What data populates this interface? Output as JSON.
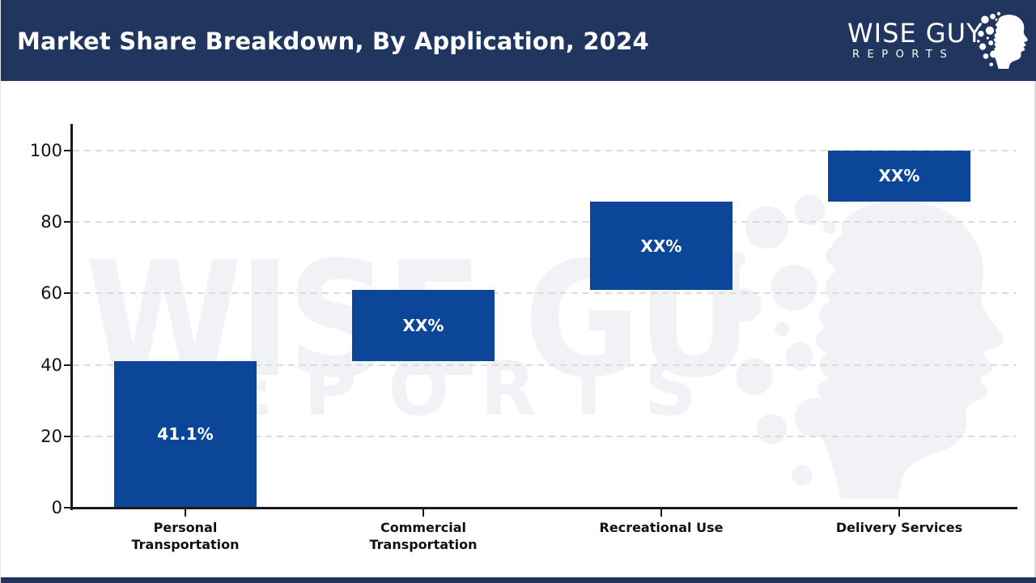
{
  "header": {
    "title": "Market Share Breakdown, By Application, 2024",
    "logo": {
      "line1": "WISE GUY",
      "line2": "REPORTS"
    }
  },
  "watermark": {
    "line1": "WISE GU",
    "line2": "REPORTS"
  },
  "chart_data": {
    "type": "bar",
    "subtype": "waterfall",
    "title": "Market Share Breakdown, By Application, 2024",
    "categories": [
      "Personal Transportation",
      "Commercial Transportation",
      "Recreational Use",
      "Delivery Services"
    ],
    "segments": [
      {
        "category": "Personal Transportation",
        "start": 0,
        "end": 41.1,
        "label": "41.1%"
      },
      {
        "category": "Commercial Transportation",
        "start": 41.1,
        "end": 60.9,
        "label": "XX%"
      },
      {
        "category": "Recreational Use",
        "start": 60.9,
        "end": 85.8,
        "label": "XX%"
      },
      {
        "category": "Delivery Services",
        "start": 85.8,
        "end": 100,
        "label": "XX%"
      }
    ],
    "yticks": [
      0,
      20,
      40,
      60,
      80,
      100
    ],
    "ylim": [
      0,
      107
    ],
    "xlabel": "",
    "ylabel": "",
    "grid": "horizontal-dashed",
    "legend": "none"
  },
  "colors": {
    "header_bg": "#21365f",
    "footer_bg": "#21365f",
    "bar": "#0b4699",
    "bar_label": "#ffffff",
    "watermark": "#f1f2f5",
    "grid": "#dcdcdc",
    "axis": "#1a1a1a",
    "title_text": "#ffffff"
  }
}
